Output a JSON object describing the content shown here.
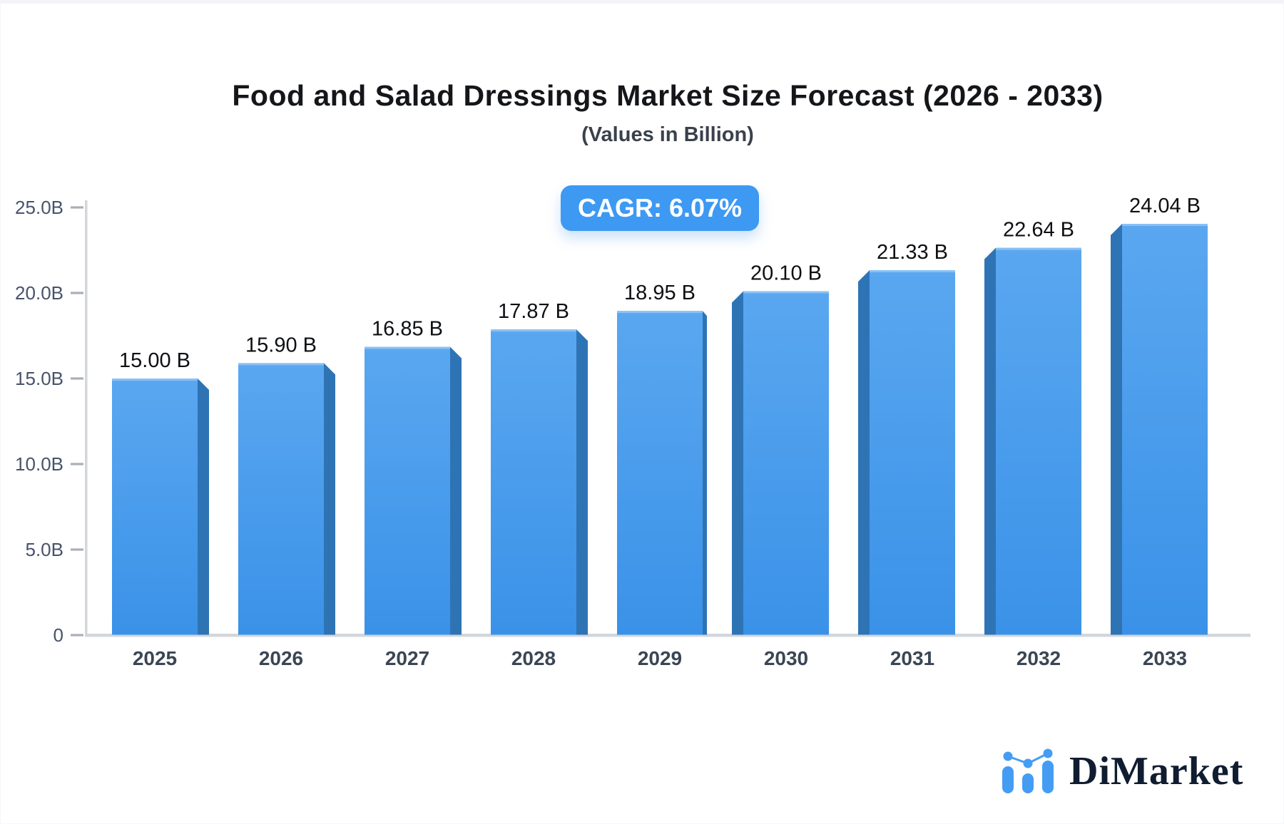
{
  "chart_data": {
    "type": "bar",
    "title": "Food and Salad Dressings Market Size Forecast (2026 - 2033)",
    "subtitle": "(Values in Billion)",
    "badge_label": "CAGR: 6.07%",
    "cagr_percent": 6.07,
    "unit": "Billion",
    "categories": [
      "2025",
      "2026",
      "2027",
      "2028",
      "2029",
      "2030",
      "2031",
      "2032",
      "2033"
    ],
    "values": [
      15.0,
      15.9,
      16.85,
      17.87,
      18.95,
      20.1,
      21.33,
      22.64,
      24.04
    ],
    "value_labels": [
      "15.00 B",
      "15.90 B",
      "16.85 B",
      "17.87 B",
      "18.95 B",
      "20.10 B",
      "21.33 B",
      "22.64 B",
      "24.04 B"
    ],
    "y_ticks": [
      {
        "label": "0",
        "value": 0
      },
      {
        "label": "5.0B",
        "value": 5
      },
      {
        "label": "10.0B",
        "value": 10
      },
      {
        "label": "15.0B",
        "value": 15
      },
      {
        "label": "20.0B",
        "value": 20
      },
      {
        "label": "25.0B",
        "value": 25
      }
    ],
    "ylim": [
      0,
      25
    ],
    "grid": false,
    "legend": false,
    "bar_style": "3d-extruded",
    "colors": {
      "bar_face_top": "#5aa7f0",
      "bar_face_bottom": "#3a92e8",
      "bar_side": "#2e74b5",
      "bar_top_highlight": "#9bc9f6",
      "axis_line": "#d3d6db",
      "tick_mark": "#a9afb9",
      "y_label": "#47536a",
      "x_label": "#3b4654",
      "value_label": "#0d0f12",
      "badge_bg": "#3d99f2",
      "badge_text": "#ffffff",
      "logo_blue": "#459df3",
      "logo_text": "#101c30"
    }
  },
  "logo": {
    "name": "DiMarket",
    "icon": "mini-bar-chart-icon"
  }
}
